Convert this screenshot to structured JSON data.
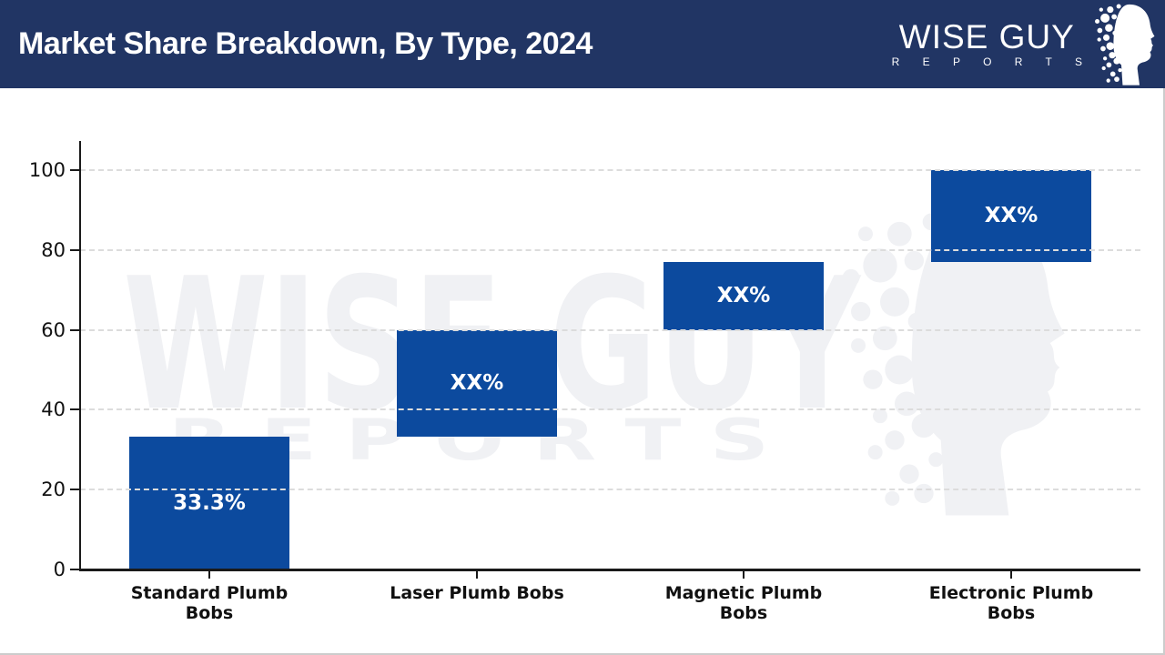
{
  "header": {
    "title": "Market Share Breakdown, By Type, 2024",
    "logo": {
      "line1": "WISE GUY",
      "line2": "R E P O R T S"
    }
  },
  "watermark": {
    "line1": "WISE GUY",
    "line2": "R E P O R T S"
  },
  "chart_data": {
    "type": "bar",
    "subtype": "waterfall",
    "title": "Market Share Breakdown, By Type, 2024",
    "categories": [
      "Standard Plumb Bobs",
      "Laser Plumb Bobs",
      "Magnetic Plumb Bobs",
      "Electronic Plumb Bobs"
    ],
    "segments": [
      {
        "category": "Standard Plumb Bobs",
        "label_lines": [
          "Standard Plumb",
          "Bobs"
        ],
        "start": 0,
        "end": 33.3,
        "value_label": "33.3%"
      },
      {
        "category": "Laser Plumb Bobs",
        "label_lines": [
          "Laser Plumb Bobs"
        ],
        "start": 33.3,
        "end": 60,
        "value_label": "XX%"
      },
      {
        "category": "Magnetic Plumb Bobs",
        "label_lines": [
          "Magnetic Plumb",
          "Bobs"
        ],
        "start": 60,
        "end": 77,
        "value_label": "XX%"
      },
      {
        "category": "Electronic Plumb Bobs",
        "label_lines": [
          "Electronic Plumb",
          "Bobs"
        ],
        "start": 77,
        "end": 100,
        "value_label": "XX%"
      }
    ],
    "yticks": [
      0,
      20,
      40,
      60,
      80,
      100
    ],
    "ylim": [
      0,
      107
    ],
    "xlabel": "",
    "ylabel": "",
    "grid": "horizontal-dashed",
    "legend": "none"
  },
  "colors": {
    "header_bg": "#213564",
    "bar": "#0c4a9e",
    "bar_label": "#ffffff",
    "watermark": "#f0f1f4",
    "gridline": "#dcdcdc",
    "axis": "#1a1a1a",
    "tick_label": "#111111",
    "edge_border": "#cccccc"
  }
}
